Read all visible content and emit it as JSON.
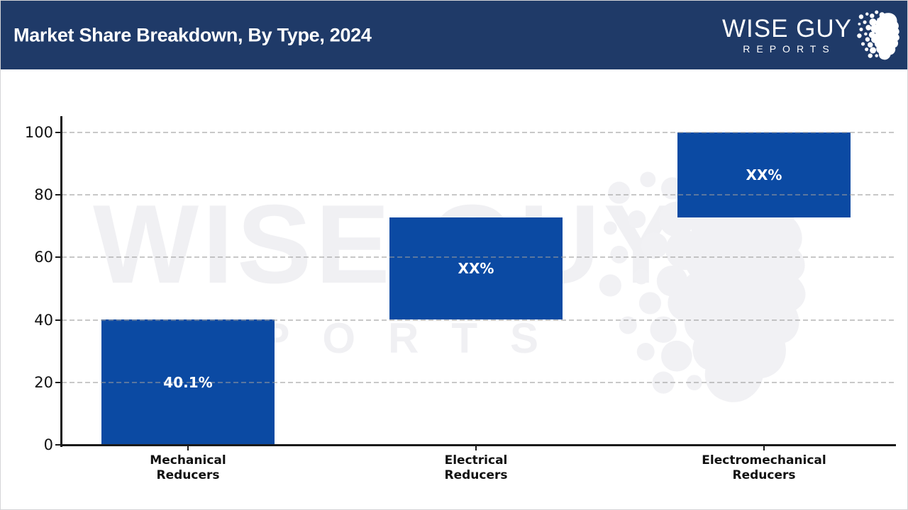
{
  "header": {
    "title": "Market Share Breakdown, By Type, 2024",
    "logo": {
      "line1": "WISE GUY",
      "line2": "REPORTS"
    }
  },
  "watermark": {
    "line1": "WISE GUY",
    "line2": "REPORTS"
  },
  "colors": {
    "header_bg": "#1f3a68",
    "bar": "#0b4aa3",
    "bar_label": "#ffffff",
    "axis": "#1a1a1a",
    "grid": "#bbbbbb",
    "watermark": "#f0f0f3"
  },
  "chart_data": {
    "type": "bar",
    "subtype": "waterfall-breakdown",
    "title": "Market Share Breakdown, By Type, 2024",
    "categories": [
      "Mechanical Reducers",
      "Electrical Reducers",
      "Electromechanical Reducers"
    ],
    "category_label_lines": [
      [
        "Mechanical",
        "Reducers"
      ],
      [
        "Electrical",
        "Reducers"
      ],
      [
        "Electromechanical",
        "Reducers"
      ]
    ],
    "segments": [
      {
        "category": "Mechanical Reducers",
        "start": 0,
        "end": 40.1,
        "label": "40.1%"
      },
      {
        "category": "Electrical Reducers",
        "start": 40.1,
        "end": 72.8,
        "label": "XX%"
      },
      {
        "category": "Electromechanical Reducers",
        "start": 72.8,
        "end": 100,
        "label": "XX%"
      }
    ],
    "xlabel": "",
    "ylabel": "",
    "ylim": [
      0,
      100
    ],
    "yticks": [
      0,
      20,
      40,
      60,
      80,
      100
    ],
    "grid": "horizontal-dashed",
    "legend": "none"
  }
}
